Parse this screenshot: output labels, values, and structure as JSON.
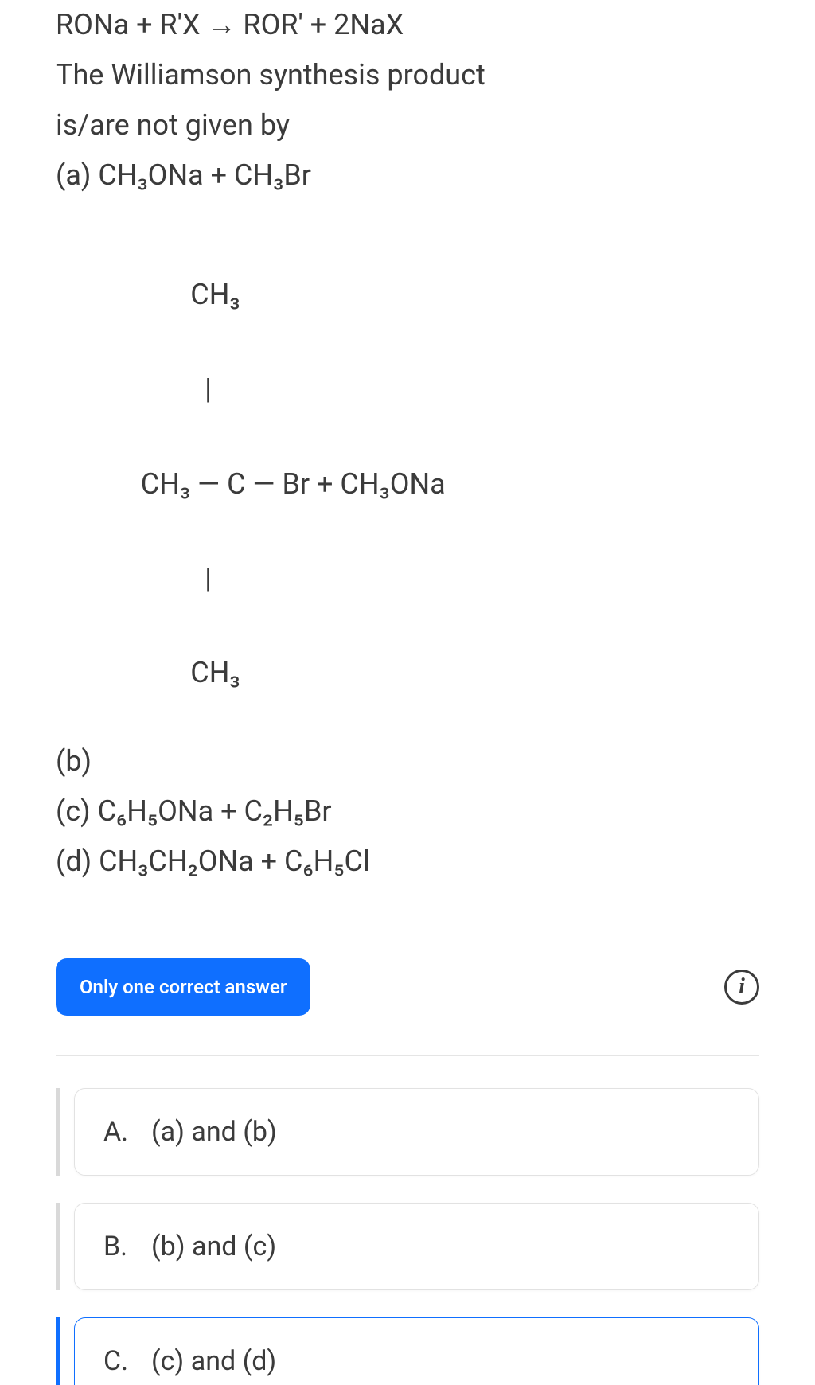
{
  "question": {
    "reaction": "RONa + R′X → ROR′ + 2NaX",
    "stem_line1": "The Williamson synthesis product",
    "stem_line2": "is/are not given by",
    "parts": {
      "a_label": "(a) CH₃ONa + CH₃Br",
      "b_label": "(b)",
      "c_label": "(c) C₆H₅ONa + C₂H₅Br",
      "d_label": "(d) CH₃CH₂ONa + C₆H₅Cl"
    },
    "structure": {
      "line1": "          CH₃",
      "line2": "            |",
      "line3": "   CH₃ — C — Br + CH₃ONa",
      "line4": "            |",
      "line5": "          CH₃"
    }
  },
  "badge": {
    "text": "Only one correct answer"
  },
  "info_icon": "i",
  "answers": [
    {
      "letter": "A.",
      "text": "(a) and (b)"
    },
    {
      "letter": "B.",
      "text": "(b) and (c)"
    },
    {
      "letter": "C.",
      "text": "(c) and (d)"
    }
  ],
  "colors": {
    "badge_bg": "#0f6fff",
    "badge_text": "#ffffff",
    "text": "#3b3b3b",
    "border": "#e2e2e2",
    "selected": "#0f6fff",
    "left_bar": "#d9d9d9"
  }
}
